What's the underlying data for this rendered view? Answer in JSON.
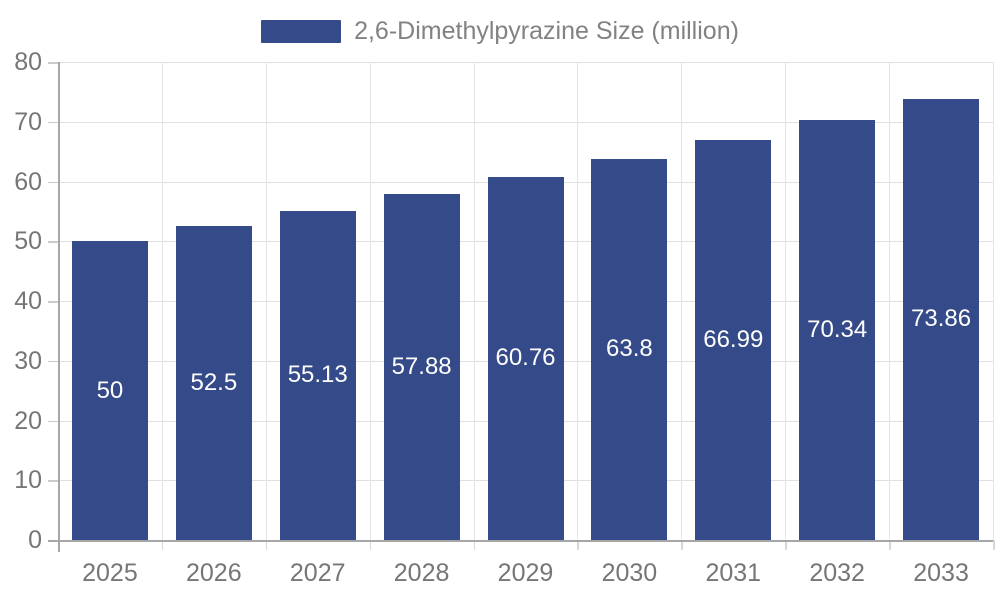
{
  "background": "#ffffff",
  "legend": {
    "label": "2,6-Dimethylpyrazine Size (million)"
  },
  "chart_data": {
    "type": "bar",
    "title": "2,6-Dimethylpyrazine Size (million)",
    "categories": [
      "2025",
      "2026",
      "2027",
      "2028",
      "2029",
      "2030",
      "2031",
      "2032",
      "2033"
    ],
    "series": [
      {
        "name": "2,6-Dimethylpyrazine Size (million)",
        "values": [
          50,
          52.5,
          55.13,
          57.88,
          60.76,
          63.8,
          66.99,
          70.34,
          73.86
        ]
      }
    ],
    "value_labels": [
      "50",
      "52.5",
      "55.13",
      "57.88",
      "60.76",
      "63.8",
      "66.99",
      "70.34",
      "73.86"
    ],
    "xlabel": "",
    "ylabel": "",
    "ylim": [
      0,
      80
    ],
    "ytick_interval": 10,
    "ytick_labels": [
      "0",
      "10",
      "20",
      "30",
      "40",
      "50",
      "60",
      "70",
      "80"
    ],
    "grid": true,
    "legend_position": "top",
    "value_label_position": "inside-center",
    "colors": {
      "bar": "#354a88",
      "grid_horizontal": "#e0e0e0",
      "grid_vertical": "#e4e4e9",
      "axis_line": "#a6a6a6",
      "axis_label_text": "#767676",
      "legend_text": "#828282",
      "value_label_text": "#ffffff"
    }
  }
}
